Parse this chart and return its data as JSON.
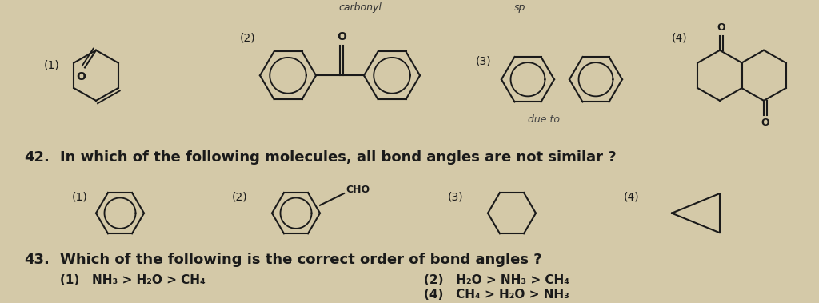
{
  "background_color": "#d4c9a8",
  "question_42_number": "42.",
  "question_42_text": "In which of the following molecules, all bond angles are not similar ?",
  "question_43_number": "43.",
  "question_43_text": "Which of the following is the correct order of bond angles ?",
  "q43_opt1": "(1)   NH₃ > H₂O > CH₄",
  "q43_opt2": "(2)   H₂O > NH₃ > CH₄",
  "q43_opt4": "(4)   CH₄ > H₂O > NH₃",
  "handwritten_carbonyl": "carbonyl",
  "handwritten_sp": "sp",
  "handwritten_due_to": "due to",
  "font_size_question": 13,
  "font_size_number": 13,
  "font_size_options": 11,
  "font_size_option_label": 10,
  "text_color": "#1a1a1a"
}
